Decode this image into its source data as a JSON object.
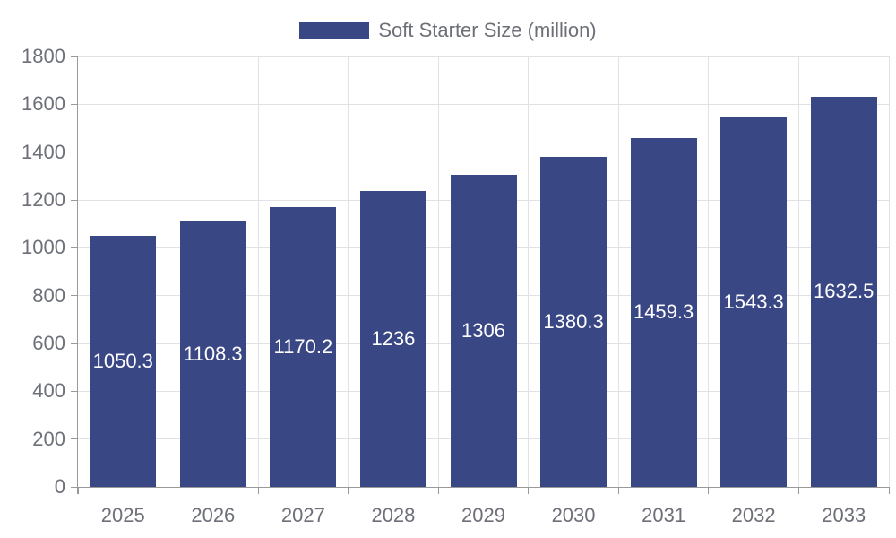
{
  "legend": {
    "label": "Soft Starter Size (million)"
  },
  "chart_data": {
    "type": "bar",
    "title": "",
    "categories": [
      "2025",
      "2026",
      "2027",
      "2028",
      "2029",
      "2030",
      "2031",
      "2032",
      "2033"
    ],
    "series": [
      {
        "name": "Soft Starter Size (million)",
        "values": [
          1050.3,
          1108.3,
          1170.2,
          1236,
          1306,
          1380.3,
          1459.3,
          1543.3,
          1632.5
        ],
        "labels": [
          "1050.3",
          "1108.3",
          "1170.2",
          "1236",
          "1306",
          "1380.3",
          "1459.3",
          "1543.3",
          "1632.5"
        ]
      }
    ],
    "xlabel": "",
    "ylabel": "",
    "ylim": [
      0,
      1800
    ],
    "ytick_step": 200,
    "yticks": [
      "0",
      "200",
      "400",
      "600",
      "800",
      "1000",
      "1200",
      "1400",
      "1600",
      "1800"
    ],
    "grid": true,
    "legend_position": "top-center",
    "value_label_position": "inside-middle",
    "colors": {
      "bar": "#3A4785",
      "bar_label": "#FFFFFF",
      "axis_text": "#6E7079",
      "axis_line": "#999999",
      "gridline": "#E2E2E6",
      "background": "#FFFFFF"
    }
  }
}
